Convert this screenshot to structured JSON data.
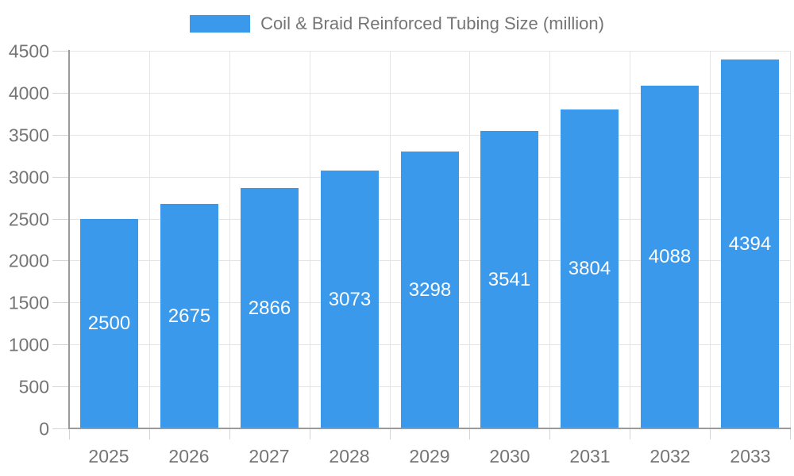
{
  "legend": {
    "label": "Coil & Braid Reinforced Tubing Size (million)",
    "swatch_color": "#3b99ec"
  },
  "chart_data": {
    "type": "bar",
    "title": "Coil & Braid Reinforced Tubing Size (million)",
    "categories": [
      "2025",
      "2026",
      "2027",
      "2028",
      "2029",
      "2030",
      "2031",
      "2032",
      "2033"
    ],
    "values": [
      2500,
      2675,
      2866,
      3073,
      3298,
      3541,
      3804,
      4088,
      4394
    ],
    "bar_labels": [
      "2500",
      "2675",
      "2866",
      "3073",
      "3298",
      "3541",
      "3804",
      "4088",
      "4394"
    ],
    "xlabel": "",
    "ylabel": "",
    "ylim": [
      0,
      4500
    ],
    "ytick_step": 500,
    "ytick_labels": [
      "0",
      "500",
      "1000",
      "1500",
      "2000",
      "2500",
      "3000",
      "3500",
      "4000",
      "4500"
    ],
    "grid": true,
    "legend_position": "top"
  },
  "colors": {
    "bar": "#3b99ec",
    "bar_label": "#ffffff",
    "gridline": "#e4e4e4",
    "tick": "#d4d4d4",
    "axis_line": "#9a9a9a",
    "axis_label": "#757575",
    "background": "#ffffff"
  }
}
